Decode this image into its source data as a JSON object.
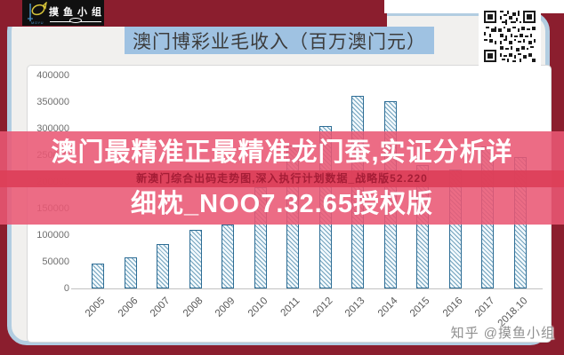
{
  "page": {
    "bg_color": "#8b1e2e",
    "card_bg": "#f1f0ee",
    "card_border_color": "#b2cde1"
  },
  "logo": {
    "brand": "摸鱼小组",
    "sub": "MOYU",
    "icon": "fish-icon"
  },
  "header": {
    "title": "澳门博彩业毛收入（百万澳门元）",
    "highlight_color": "#9fc2e2"
  },
  "qr": {
    "icon": "qr-code"
  },
  "overlay": {
    "line1": "澳门最精准正最精准龙门蚕,实证分析详",
    "line2": "细枕_NOO7.32.65授权版",
    "sub_text": "新澳门综合出码走势图,深入执行计划数据_战略版52.220",
    "band_color": "#e95874",
    "stripe_color": "#dd3e58"
  },
  "watermark": {
    "text": "知乎 @摸鱼小组"
  },
  "chart_data": {
    "type": "bar",
    "title": "澳门博彩业毛收入（百万澳门元）",
    "categories": [
      "2005",
      "2006",
      "2007",
      "2008",
      "2009",
      "2010",
      "2011",
      "2012",
      "2013",
      "2014",
      "2015",
      "2016",
      "2017",
      "2018.10"
    ],
    "values": [
      47134,
      57521,
      83847,
      109826,
      120383,
      189588,
      269058,
      305235,
      361866,
      351521,
      231811,
      223210,
      266580,
      246100
    ],
    "xlabel": "",
    "ylabel": "",
    "ylim": [
      0,
      400000
    ],
    "yticks": [
      0,
      50000,
      100000,
      150000,
      200000,
      250000,
      300000,
      350000,
      400000
    ],
    "grid": false,
    "legend": "none",
    "bar_style": "diagonal-hatch",
    "bar_outline_color": "#2d6d95"
  }
}
